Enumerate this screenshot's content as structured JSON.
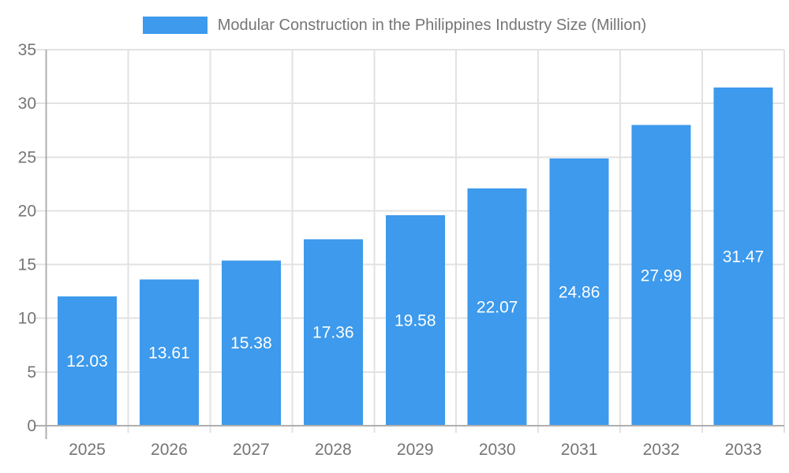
{
  "chart_data": {
    "type": "bar",
    "title": "Modular Construction in the Philippines Industry Size (Million)",
    "legend": {
      "label": "Modular Construction in the Philippines Industry Size (Million)",
      "position": "top"
    },
    "categories": [
      "2025",
      "2026",
      "2027",
      "2028",
      "2029",
      "2030",
      "2031",
      "2032",
      "2033"
    ],
    "series": [
      {
        "name": "Modular Construction in the Philippines Industry Size (Million)",
        "values": [
          12.03,
          13.61,
          15.38,
          17.36,
          19.58,
          22.07,
          24.86,
          27.99,
          31.47
        ]
      }
    ],
    "value_labels": [
      "12.03",
      "13.61",
      "15.38",
      "17.36",
      "19.58",
      "22.07",
      "24.86",
      "27.99",
      "31.47"
    ],
    "xlabel": "",
    "ylabel": "",
    "ylim": [
      0,
      35
    ],
    "yticks": [
      0,
      5,
      10,
      15,
      20,
      25,
      30,
      35
    ],
    "grid": true,
    "legend_position": "top"
  },
  "colors": {
    "bar": "#3D9AEC",
    "value_label": "#FFFFFF",
    "axis_text": "#757575",
    "legend_text": "#757575",
    "grid_line": "#E2E2E2",
    "axis_line": "#AFAFAF",
    "background": "#FFFFFF"
  }
}
